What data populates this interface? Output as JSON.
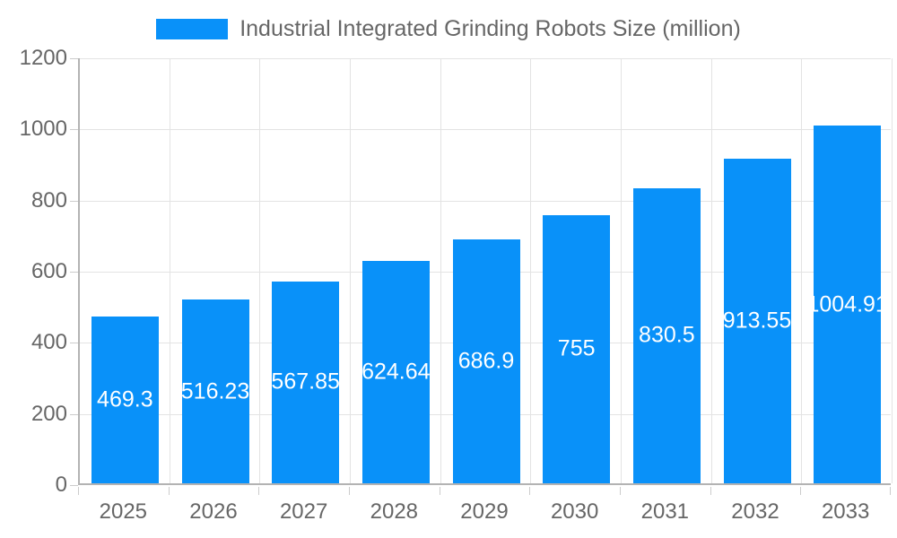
{
  "chart_data": {
    "type": "bar",
    "title": "Industrial Integrated Grinding Robots Size (million)",
    "categories": [
      "2025",
      "2026",
      "2027",
      "2028",
      "2029",
      "2030",
      "2031",
      "2032",
      "2033"
    ],
    "series": [
      {
        "name": "Industrial Integrated Grinding Robots Size (million)",
        "values": [
          469.3,
          516.23,
          567.85,
          624.64,
          686.9,
          755,
          830.5,
          913.55,
          1004.91
        ]
      }
    ],
    "xlabel": "",
    "ylabel": "",
    "ylim": [
      0,
      1200
    ],
    "yticks": [
      0,
      200,
      400,
      600,
      800,
      1000,
      1200
    ],
    "grid": true,
    "legend_position": "top",
    "bar_color": "#0991f9",
    "bar_label_color": "#ffffff",
    "axis_text_color": "#666666",
    "grid_color": "#e3e3e3",
    "axis_line_color": "#b3b3b3",
    "tick_color": "#cccccc",
    "background_color": "#ffffff"
  }
}
